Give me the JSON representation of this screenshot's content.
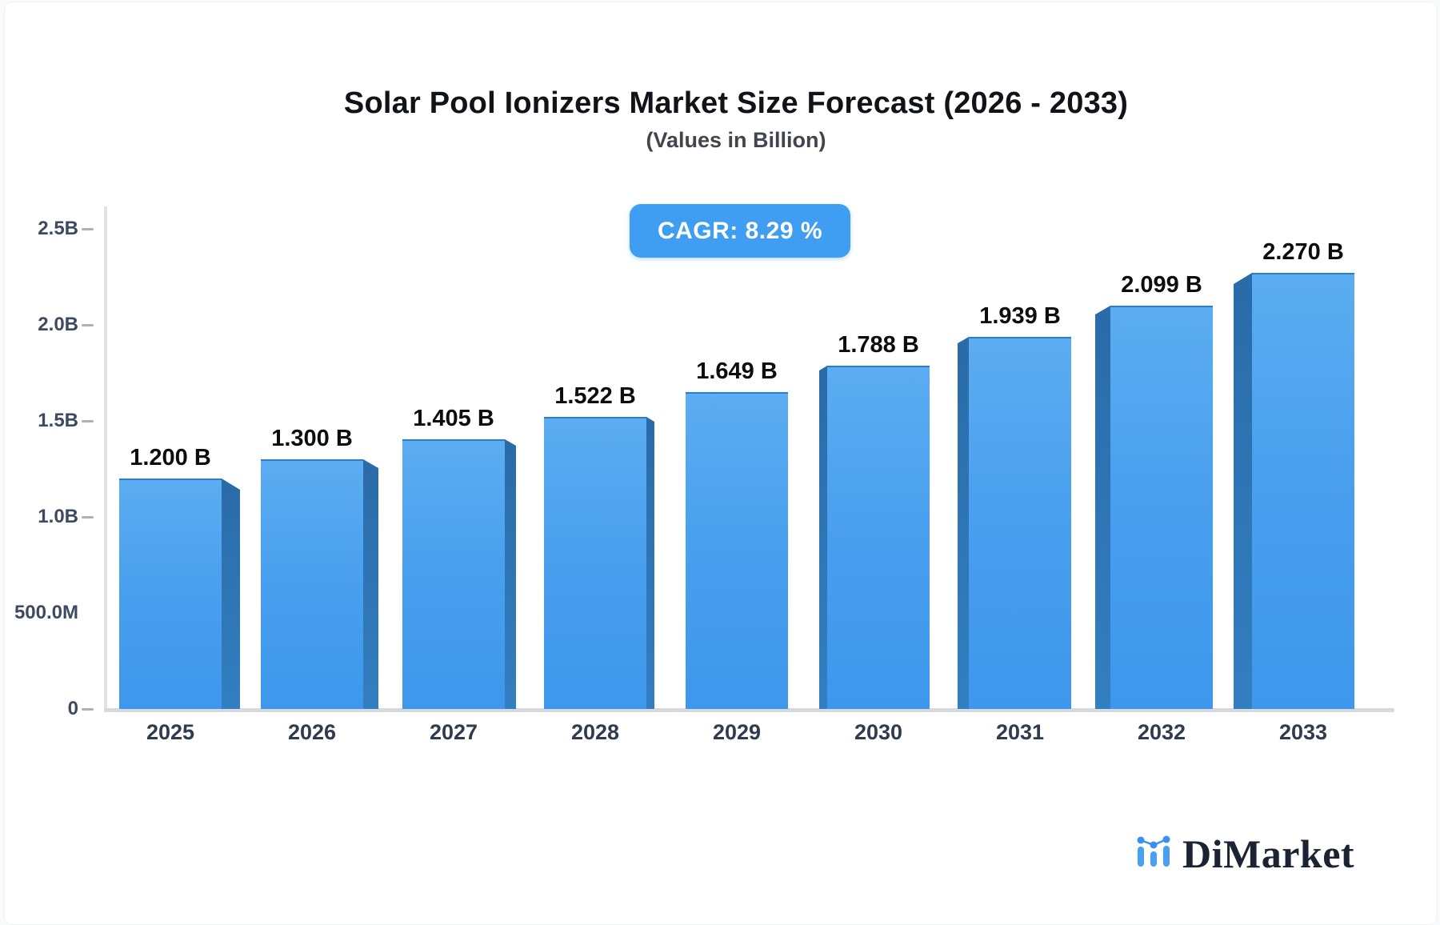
{
  "chart_data": {
    "type": "bar",
    "title": "Solar Pool Ionizers Market Size Forecast (2026 - 2033)",
    "subtitle": "(Values in Billion)",
    "badge_label": "CAGR: 8.29 %",
    "unit": "B",
    "categories": [
      "2025",
      "2026",
      "2027",
      "2028",
      "2029",
      "2030",
      "2031",
      "2032",
      "2033"
    ],
    "values": [
      1.2,
      1.3,
      1.405,
      1.522,
      1.649,
      1.788,
      1.939,
      2.099,
      2.27
    ],
    "value_labels": [
      "1.200 B",
      "1.300 B",
      "1.405 B",
      "1.522 B",
      "1.649 B",
      "1.788 B",
      "1.939 B",
      "2.099 B",
      "2.270 B"
    ],
    "ylim": [
      0,
      2.5
    ],
    "yticks": [
      {
        "label": "0",
        "value": 0.0,
        "dash": true
      },
      {
        "label": "500.0M",
        "value": 0.5,
        "dash": false
      },
      {
        "label": "1.0B",
        "value": 1.0,
        "dash": true
      },
      {
        "label": "1.5B",
        "value": 1.5,
        "dash": true
      },
      {
        "label": "2.0B",
        "value": 2.0,
        "dash": true
      },
      {
        "label": "2.5B",
        "value": 2.5,
        "dash": true
      }
    ],
    "grid": false,
    "legend": false,
    "style": "3d-perspective-bars"
  },
  "colors": {
    "bar_front": "#4aa0ee",
    "bar_front_light": "#5cadf1",
    "bar_front_dark": "#3e97ec",
    "bar_side": "#2e76b5",
    "bar_top_stroke": "#2b7ccb",
    "badge_bg": "#3f9ef2",
    "badge_text": "#ffffff",
    "axis_line": "#d6dade",
    "tick_text": "#3e4a5f",
    "logo_blue": "#4aa0f0",
    "logo_text": "#1b2433"
  },
  "branding": {
    "logo_text": "DiMarket",
    "logo_icon": "mini-bar-line-chart-icon"
  }
}
